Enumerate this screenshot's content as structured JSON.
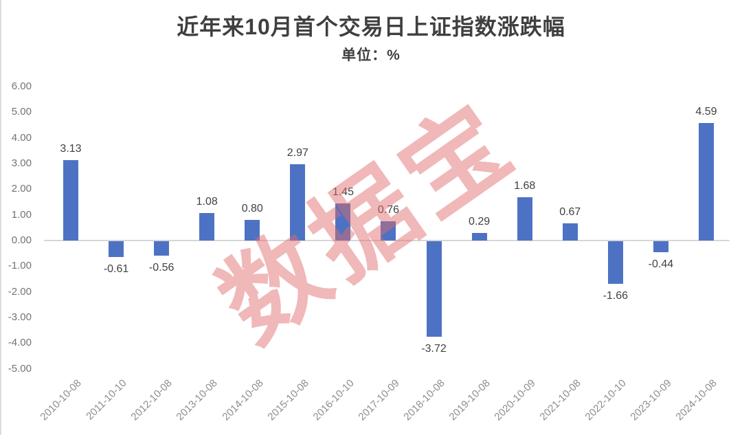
{
  "page": {
    "title": "近年来10月首个交易日上证指数涨跌幅",
    "subtitle": "单位：%",
    "watermark_text": "数据宝"
  },
  "colors": {
    "bar": "#4d72c4",
    "axis_line": "#d6d6d6",
    "value_label": "#404040",
    "y_tick_label": "#737373",
    "x_tick_label": "#8c8c8c",
    "watermark": "rgba(224,106,106,0.48)",
    "title_text": "#3f3f3f"
  },
  "chart_data": {
    "type": "bar",
    "title": "近年来10月首个交易日上证指数涨跌幅",
    "subtitle_unit": "单位：%",
    "xlabel": "",
    "ylabel": "",
    "ylim": [
      -5.0,
      6.0
    ],
    "grid": false,
    "legend": "none",
    "categories": [
      "2010-10-08",
      "2011-10-10",
      "2012-10-08",
      "2013-10-08",
      "2014-10-08",
      "2015-10-08",
      "2016-10-10",
      "2017-10-09",
      "2018-10-08",
      "2019-10-08",
      "2020-10-09",
      "2021-10-08",
      "2022-10-10",
      "2023-10-09",
      "2024-10-08"
    ],
    "values": [
      3.13,
      -0.61,
      -0.56,
      1.08,
      0.8,
      2.97,
      1.45,
      0.76,
      -3.72,
      0.29,
      1.68,
      0.67,
      -1.66,
      -0.44,
      4.59
    ],
    "value_labels": [
      "3.13",
      "-0.61",
      "-0.56",
      "1.08",
      "0.80",
      "2.97",
      "1.45",
      "0.76",
      "-3.72",
      "0.29",
      "1.68",
      "0.67",
      "-1.66",
      "-0.44",
      "4.59"
    ],
    "y_ticks": [
      "6.00",
      "5.00",
      "4.00",
      "3.00",
      "2.00",
      "1.00",
      "0.00",
      "-1.00",
      "-2.00",
      "-3.00",
      "-4.00",
      "-5.00"
    ]
  }
}
